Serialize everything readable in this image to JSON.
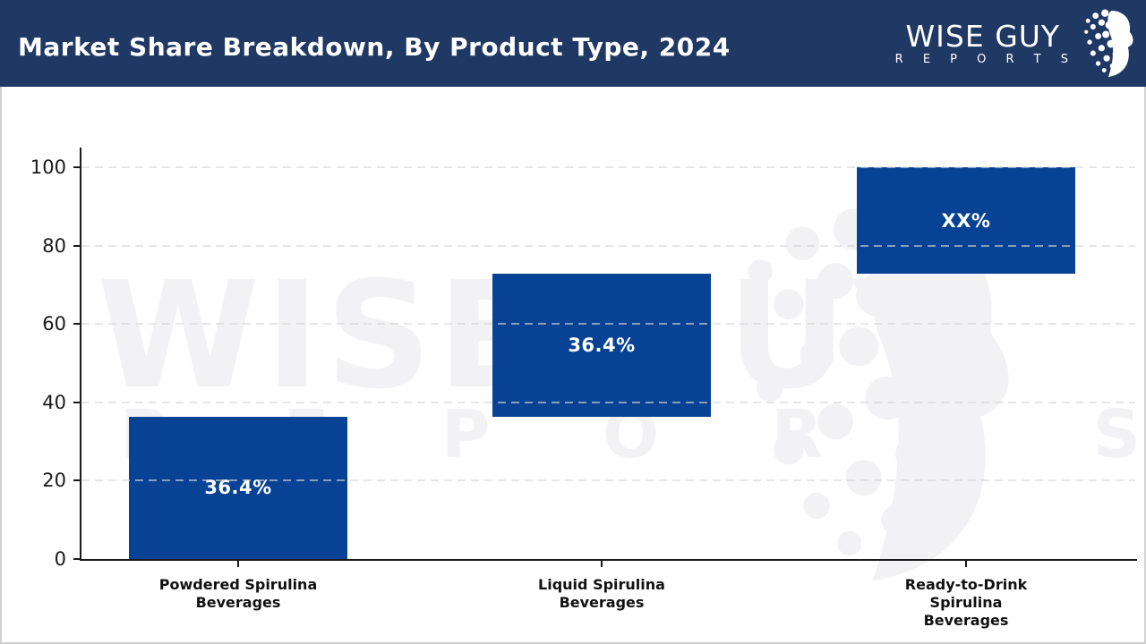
{
  "header": {
    "title": "Market Share Breakdown, By Product Type, 2024",
    "logo": {
      "line1": "WISE GUY",
      "line2": "R E P O R T S"
    }
  },
  "watermark": {
    "line1": "WISE GUY",
    "line2": "R E P O R T S"
  },
  "chart_data": {
    "type": "bar",
    "variant": "floating-segments",
    "title": "Market Share Breakdown, By Product Type, 2024",
    "categories": [
      "Powdered Spirulina Beverages",
      "Liquid Spirulina Beverages",
      "Ready-to-Drink Spirulina Beverages"
    ],
    "categories_lines": [
      [
        "Powdered Spirulina",
        "Beverages"
      ],
      [
        "Liquid Spirulina",
        "Beverages"
      ],
      [
        "Ready-to-Drink",
        "Spirulina",
        "Beverages"
      ]
    ],
    "bars": [
      {
        "category": "Powdered Spirulina Beverages",
        "start": 0,
        "end": 36.4,
        "label": "36.4%"
      },
      {
        "category": "Liquid Spirulina Beverages",
        "start": 36.4,
        "end": 72.8,
        "label": "36.4%"
      },
      {
        "category": "Ready-to-Drink Spirulina Beverages",
        "start": 72.8,
        "end": 100,
        "label": "XX%"
      }
    ],
    "ylim": [
      0,
      100
    ],
    "yticks": [
      0,
      20,
      40,
      60,
      80,
      100
    ],
    "xlabel": "",
    "ylabel": "",
    "grid": "horizontal-dashed",
    "legend": "none"
  },
  "colors": {
    "header_bg": "#1f3864",
    "bar": "#084294",
    "axis": "#1a1a1a",
    "gridline": "#d6d6d6",
    "watermark": "#f2f2f4",
    "label_on_bar": "#ffffff",
    "border": "#d0d0d0"
  }
}
